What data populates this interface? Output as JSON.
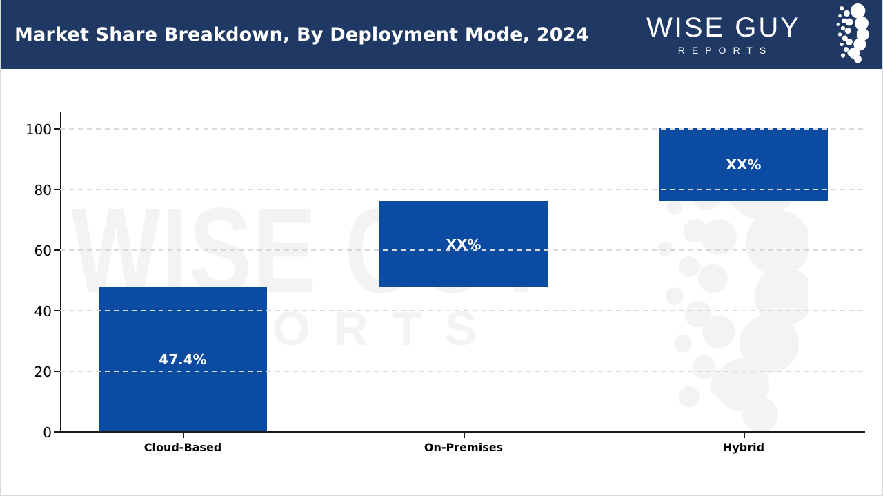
{
  "header": {
    "title": "Market Share Breakdown, By Deployment Mode, 2024",
    "logo": {
      "line1": "WISE GUY",
      "line2": "REPORTS"
    }
  },
  "watermark": {
    "line1": "WISE GUY",
    "line2": "REPORTS"
  },
  "colors": {
    "header_bg": "#1F3864",
    "bar": "#0C4BA2",
    "grid": "#D9D9D9",
    "axis": "#1A1A1A",
    "watermark": "#F3F3F5",
    "bar_label": "#FFFFFF"
  },
  "chart_data": {
    "type": "bar",
    "variant": "waterfall",
    "title": "Market Share Breakdown, By Deployment Mode, 2024",
    "categories": [
      "Cloud-Based",
      "On-Premises",
      "Hybrid"
    ],
    "segments": [
      {
        "category": "Cloud-Based",
        "start": 0,
        "end": 47.4,
        "label": "47.4%"
      },
      {
        "category": "On-Premises",
        "start": 47.4,
        "end": 76,
        "label": "XX%"
      },
      {
        "category": "Hybrid",
        "start": 76,
        "end": 100,
        "label": "XX%"
      }
    ],
    "yticks": [
      0,
      20,
      40,
      60,
      80,
      100
    ],
    "ylim": [
      0,
      105
    ],
    "xlabel": "",
    "ylabel": "",
    "grid": "horizontal-dashed-above-bars",
    "legend": "none",
    "bar_color": "#0C4BA2"
  }
}
